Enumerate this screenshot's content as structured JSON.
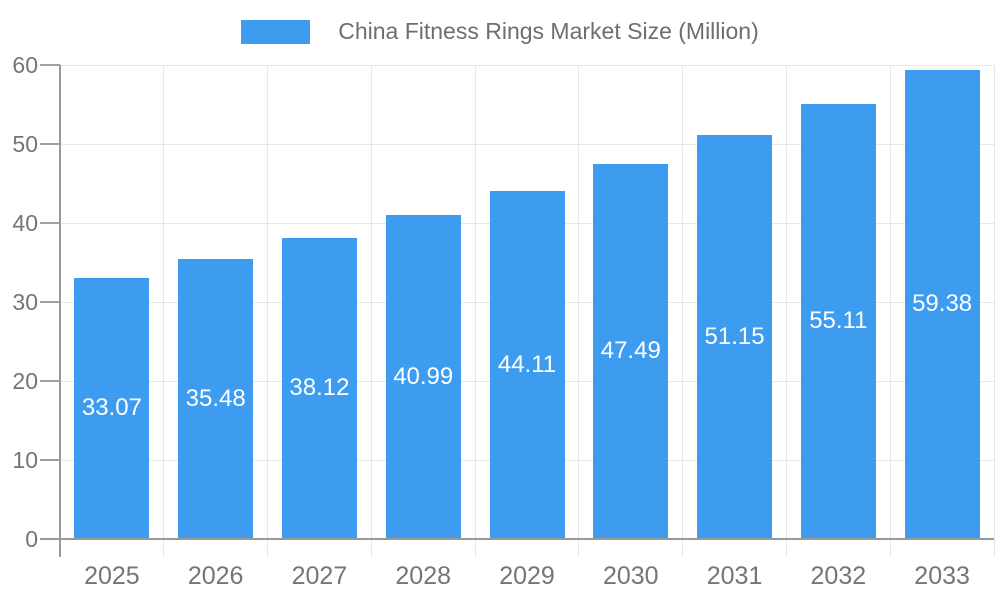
{
  "legend": {
    "series_label": "China Fitness Rings Market Size (Million)"
  },
  "colors": {
    "bar": "#3D9CF0",
    "grid_line": "#E6E6E6",
    "axis_line": "#999999",
    "axis_tick": "#A0A0A0",
    "y_tick_label": "#757575",
    "x_tick_label": "#757575",
    "value_label": "#FFFFFF",
    "legend_text": "#6E6E6E",
    "background": "#FFFFFF"
  },
  "chart_data": {
    "type": "bar",
    "title": "China Fitness Rings Market Size (Million)",
    "categories": [
      "2025",
      "2026",
      "2027",
      "2028",
      "2029",
      "2030",
      "2031",
      "2032",
      "2033"
    ],
    "series": [
      {
        "name": "China Fitness Rings Market Size (Million)",
        "values": [
          33.07,
          35.48,
          38.12,
          40.99,
          44.11,
          47.49,
          51.15,
          55.11,
          59.38
        ]
      }
    ],
    "value_labels_shown": true,
    "value_label_position": "inside-center",
    "xlabel": "",
    "ylabel": "",
    "ylim": [
      0,
      60
    ],
    "yticks": [
      0,
      10,
      20,
      30,
      40,
      50,
      60
    ],
    "grid": true,
    "legend_position": "top-center"
  }
}
